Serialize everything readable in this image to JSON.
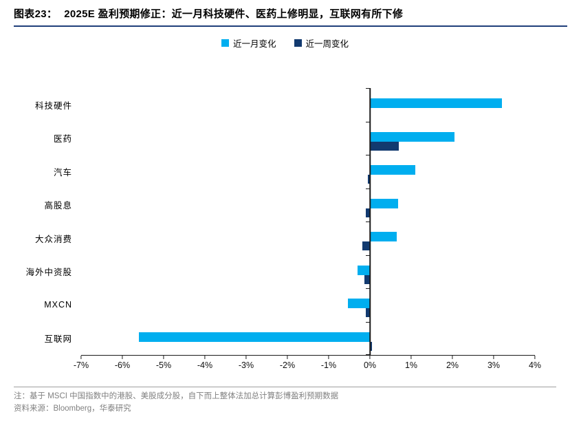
{
  "header": {
    "figure_label": "图表23：",
    "title": "2025E 盈利预期修正：近一月科技硬件、医药上修明显，互联网有所下修"
  },
  "footer": {
    "note": "注：基于 MSCI 中国指数中的港股、美股成分股，自下而上整体法加总计算彭博盈利预期数据",
    "source": "资料来源：Bloomberg，华泰研究"
  },
  "colors": {
    "month_series": "#00AEEF",
    "week_series": "#123A6F",
    "title_rule": "#1F3E7A",
    "axis": "#1a1a1a",
    "footer_text": "#808080",
    "footer_rule": "#9e9e9e"
  },
  "chart_data": {
    "type": "bar",
    "orientation": "horizontal",
    "title": "2025E 盈利预期修正",
    "categories": [
      "科技硬件",
      "医药",
      "汽车",
      "高股息",
      "大众消费",
      "海外中资股",
      "MXCN",
      "互联网"
    ],
    "series": [
      {
        "name": "近一月变化",
        "color": "#00AEEF",
        "values": [
          3.2,
          2.05,
          1.1,
          0.68,
          0.65,
          -0.3,
          -0.53,
          -5.6
        ]
      },
      {
        "name": "近一周变化",
        "color": "#123A6F",
        "values": [
          0.0,
          0.7,
          -0.05,
          -0.1,
          -0.18,
          -0.13,
          -0.1,
          0.05
        ]
      }
    ],
    "xlim": [
      -7,
      4
    ],
    "xticks": [
      "-7%",
      "-6%",
      "-5%",
      "-4%",
      "-3%",
      "-2%",
      "-1%",
      "0%",
      "1%",
      "2%",
      "3%",
      "4%"
    ],
    "xlabel": "",
    "ylabel": "",
    "grid": false,
    "legend_position": "top-center"
  }
}
